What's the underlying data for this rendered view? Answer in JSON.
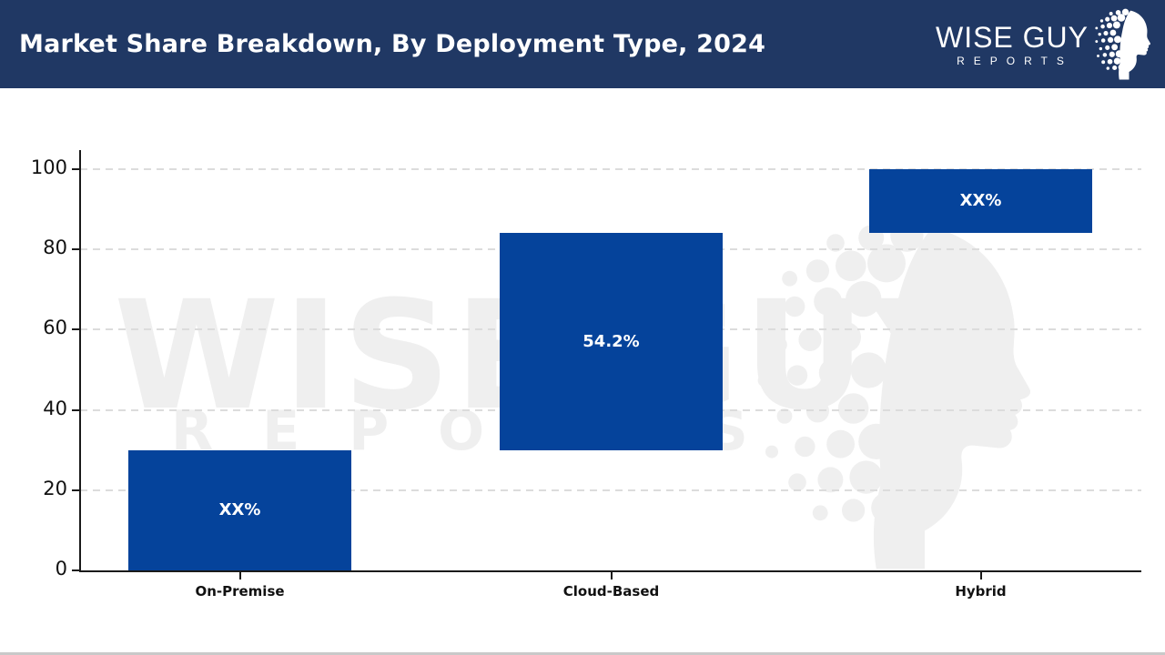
{
  "header": {
    "title": "Market Share Breakdown, By Deployment Type, 2024",
    "background_color": "#203864",
    "logo": {
      "name": "WISE GUY REPORTS",
      "line1": "WISE GUY",
      "line2": "REPORTS"
    }
  },
  "watermark": {
    "line1": "WISE GUY",
    "line2": "REPORTS"
  },
  "chart_data": {
    "type": "bar",
    "subtype": "floating-waterfall",
    "title": "Market Share Breakdown, By Deployment Type, 2024",
    "categories": [
      "On-Premise",
      "Cloud-Based",
      "Hybrid"
    ],
    "segments": [
      {
        "category": "On-Premise",
        "start": 0,
        "end": 30,
        "label": "XX%"
      },
      {
        "category": "Cloud-Based",
        "start": 30,
        "end": 84.2,
        "label": "54.2%"
      },
      {
        "category": "Hybrid",
        "start": 84.2,
        "end": 100,
        "label": "XX%"
      }
    ],
    "yticks": [
      0,
      20,
      40,
      60,
      80,
      100
    ],
    "ylim": [
      0,
      105
    ],
    "xlabel": "",
    "ylabel": "",
    "legend": "none",
    "grid": {
      "axis": "y",
      "style": "dashed",
      "color": "#dcdcdc"
    },
    "bar_color": "#05439B",
    "bar_label_color": "#ffffff",
    "axis_color": "#1a1a1a"
  }
}
